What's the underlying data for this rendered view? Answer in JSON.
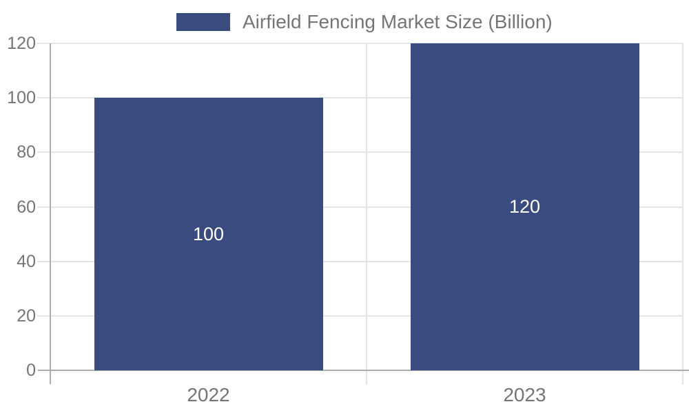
{
  "chart_data": {
    "type": "bar",
    "title": "Airfield Fencing Market Size (Billion)",
    "categories": [
      "2022",
      "2023"
    ],
    "values": [
      100,
      120
    ],
    "bar_value_labels": [
      "100",
      "120"
    ],
    "xlabel": "",
    "ylabel": "",
    "ylim": [
      0,
      120
    ],
    "yticks": [
      0,
      20,
      40,
      60,
      80,
      100,
      120
    ],
    "ytick_labels": [
      "0",
      "20",
      "40",
      "60",
      "80",
      "100",
      "120"
    ],
    "grid": true,
    "legend_position": "top-center",
    "bar_label_position": "inside-center"
  },
  "legend": {
    "label": "Airfield Fencing Market Size (Billion)"
  },
  "colors": {
    "bar": "#3A4B80",
    "gridline": "#E4E4E4",
    "axis": "#ABABAB",
    "tick_text": "#757575",
    "bar_label_text": "#FFFFFF",
    "background": "#FFFFFF"
  }
}
